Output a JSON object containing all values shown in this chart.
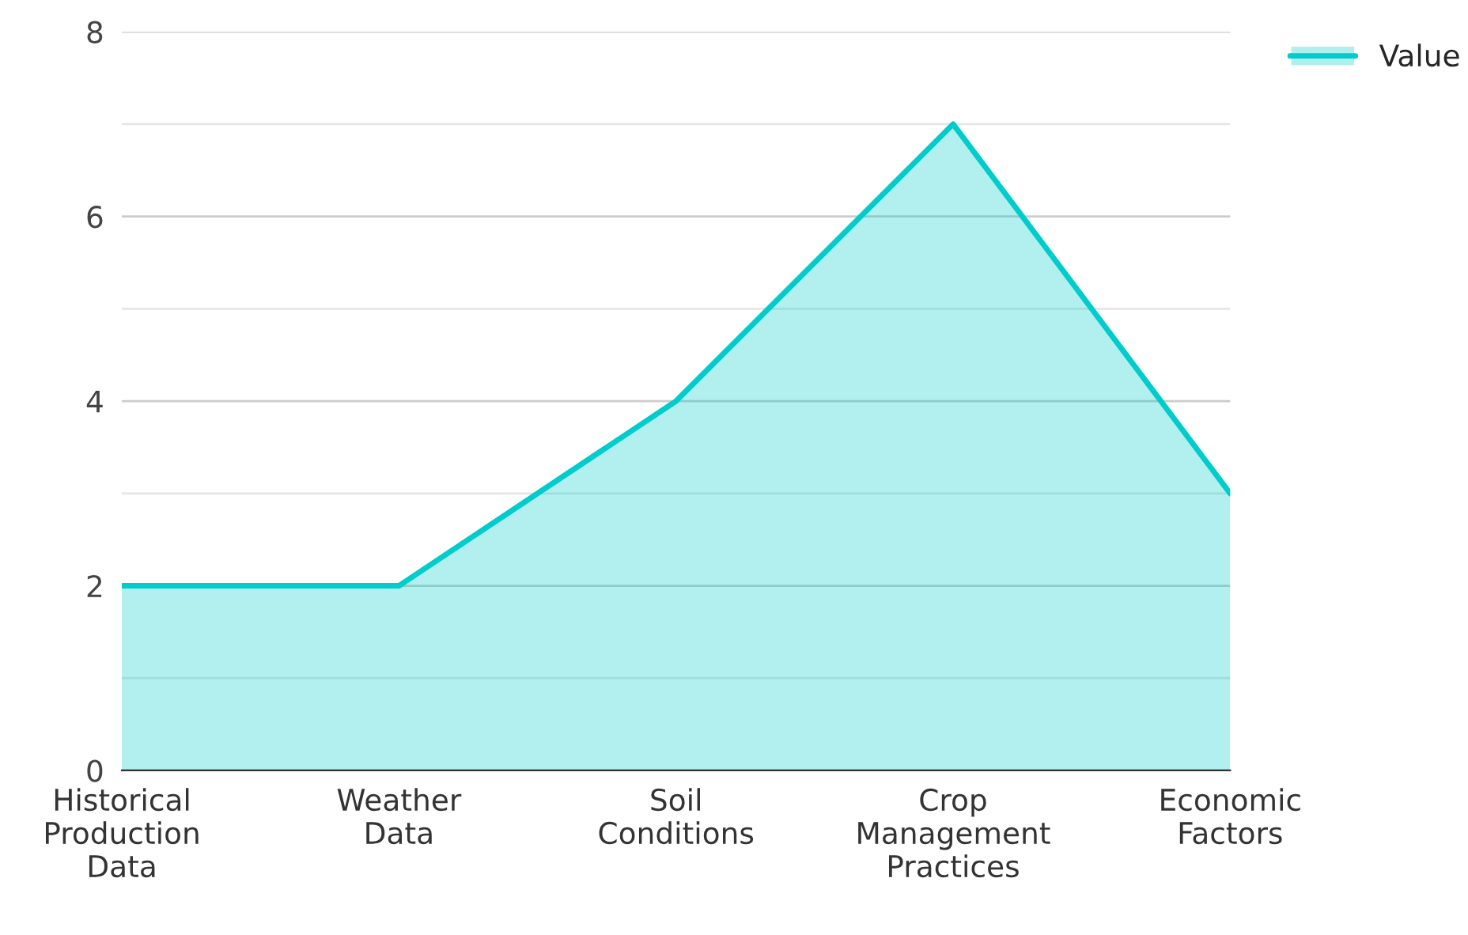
{
  "chart_data": {
    "type": "area",
    "categories": [
      "Historical Production Data",
      "Weather Data",
      "Soil Conditions",
      "Crop Management Practices",
      "Economic Factors"
    ],
    "series": [
      {
        "name": "Value",
        "color": "#00cccc",
        "values": [
          2,
          2,
          4,
          7,
          3
        ]
      }
    ],
    "ylim": [
      0,
      8
    ],
    "yticks": [
      0,
      {
        "value": 1,
        "label": null
      },
      2,
      {
        "value": 3,
        "label": null
      },
      4,
      {
        "value": 5,
        "label": null
      },
      6,
      {
        "value": 7,
        "label": null
      },
      8
    ],
    "grid": "y",
    "legend": "top right"
  }
}
